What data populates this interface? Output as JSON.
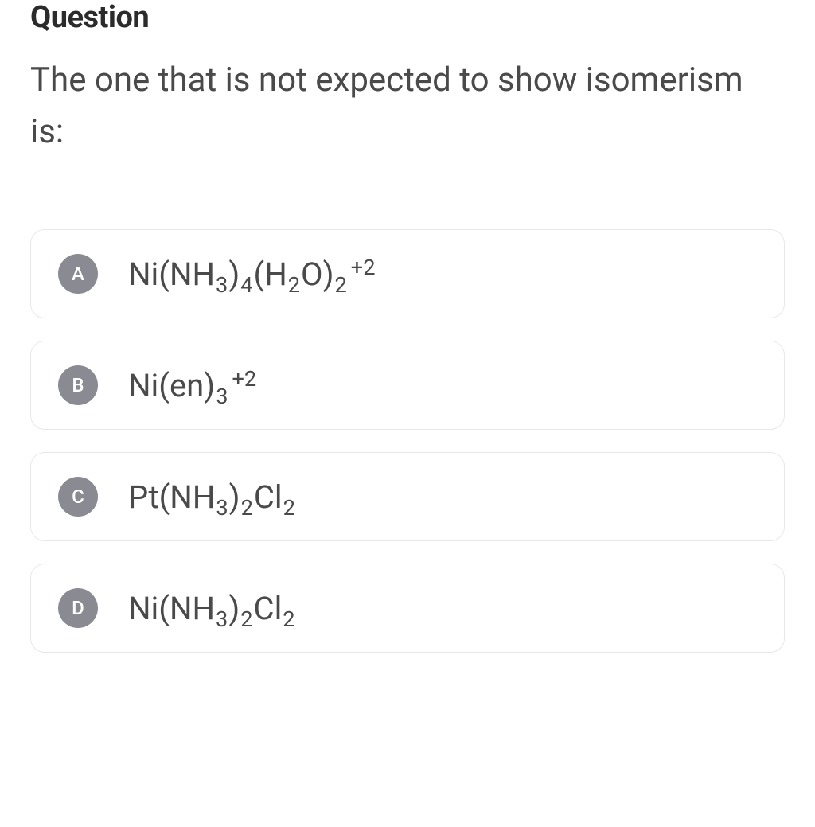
{
  "heading": "Question",
  "questionText": "The one that is not expected to show isomerism is:",
  "options": [
    {
      "letter": "A",
      "formula": {
        "parts": [
          {
            "t": "Ni(NH",
            "s": "normal"
          },
          {
            "t": "3",
            "s": "sub"
          },
          {
            "t": " )",
            "s": "normal"
          },
          {
            "t": "4",
            "s": "sub"
          },
          {
            "t": " (H",
            "s": "normal"
          },
          {
            "t": "2",
            "s": "sub"
          },
          {
            "t": " O)",
            "s": "normal"
          },
          {
            "t": "2",
            "s": "sub"
          },
          {
            "t": "+2",
            "s": "sup"
          }
        ]
      }
    },
    {
      "letter": "B",
      "formula": {
        "parts": [
          {
            "t": "Ni(en)",
            "s": "normal"
          },
          {
            "t": "3",
            "s": "sub"
          },
          {
            "t": "+2",
            "s": "sup"
          }
        ]
      }
    },
    {
      "letter": "C",
      "formula": {
        "parts": [
          {
            "t": "Pt(NH",
            "s": "normal"
          },
          {
            "t": "3",
            "s": "sub"
          },
          {
            "t": " )",
            "s": "normal"
          },
          {
            "t": "2",
            "s": "sub"
          },
          {
            "t": " Cl",
            "s": "normal"
          },
          {
            "t": "2",
            "s": "sub"
          }
        ]
      }
    },
    {
      "letter": "D",
      "formula": {
        "parts": [
          {
            "t": "Ni(NH",
            "s": "normal"
          },
          {
            "t": "3",
            "s": "sub"
          },
          {
            "t": " )",
            "s": "normal"
          },
          {
            "t": "2",
            "s": "sub"
          },
          {
            "t": " Cl",
            "s": "normal"
          },
          {
            "t": "2",
            "s": "sub"
          }
        ]
      }
    }
  ],
  "styles": {
    "background_color": "#ffffff",
    "heading_color": "#2b2b2b",
    "text_color": "#4a4a4a",
    "option_border_color": "#e8e8ec",
    "option_border_radius": 18,
    "letter_bg_color": "#8a8a92",
    "letter_text_color": "#ffffff",
    "heading_fontsize": 38,
    "question_fontsize": 42,
    "option_fontsize": 40,
    "letter_fontsize": 24
  }
}
